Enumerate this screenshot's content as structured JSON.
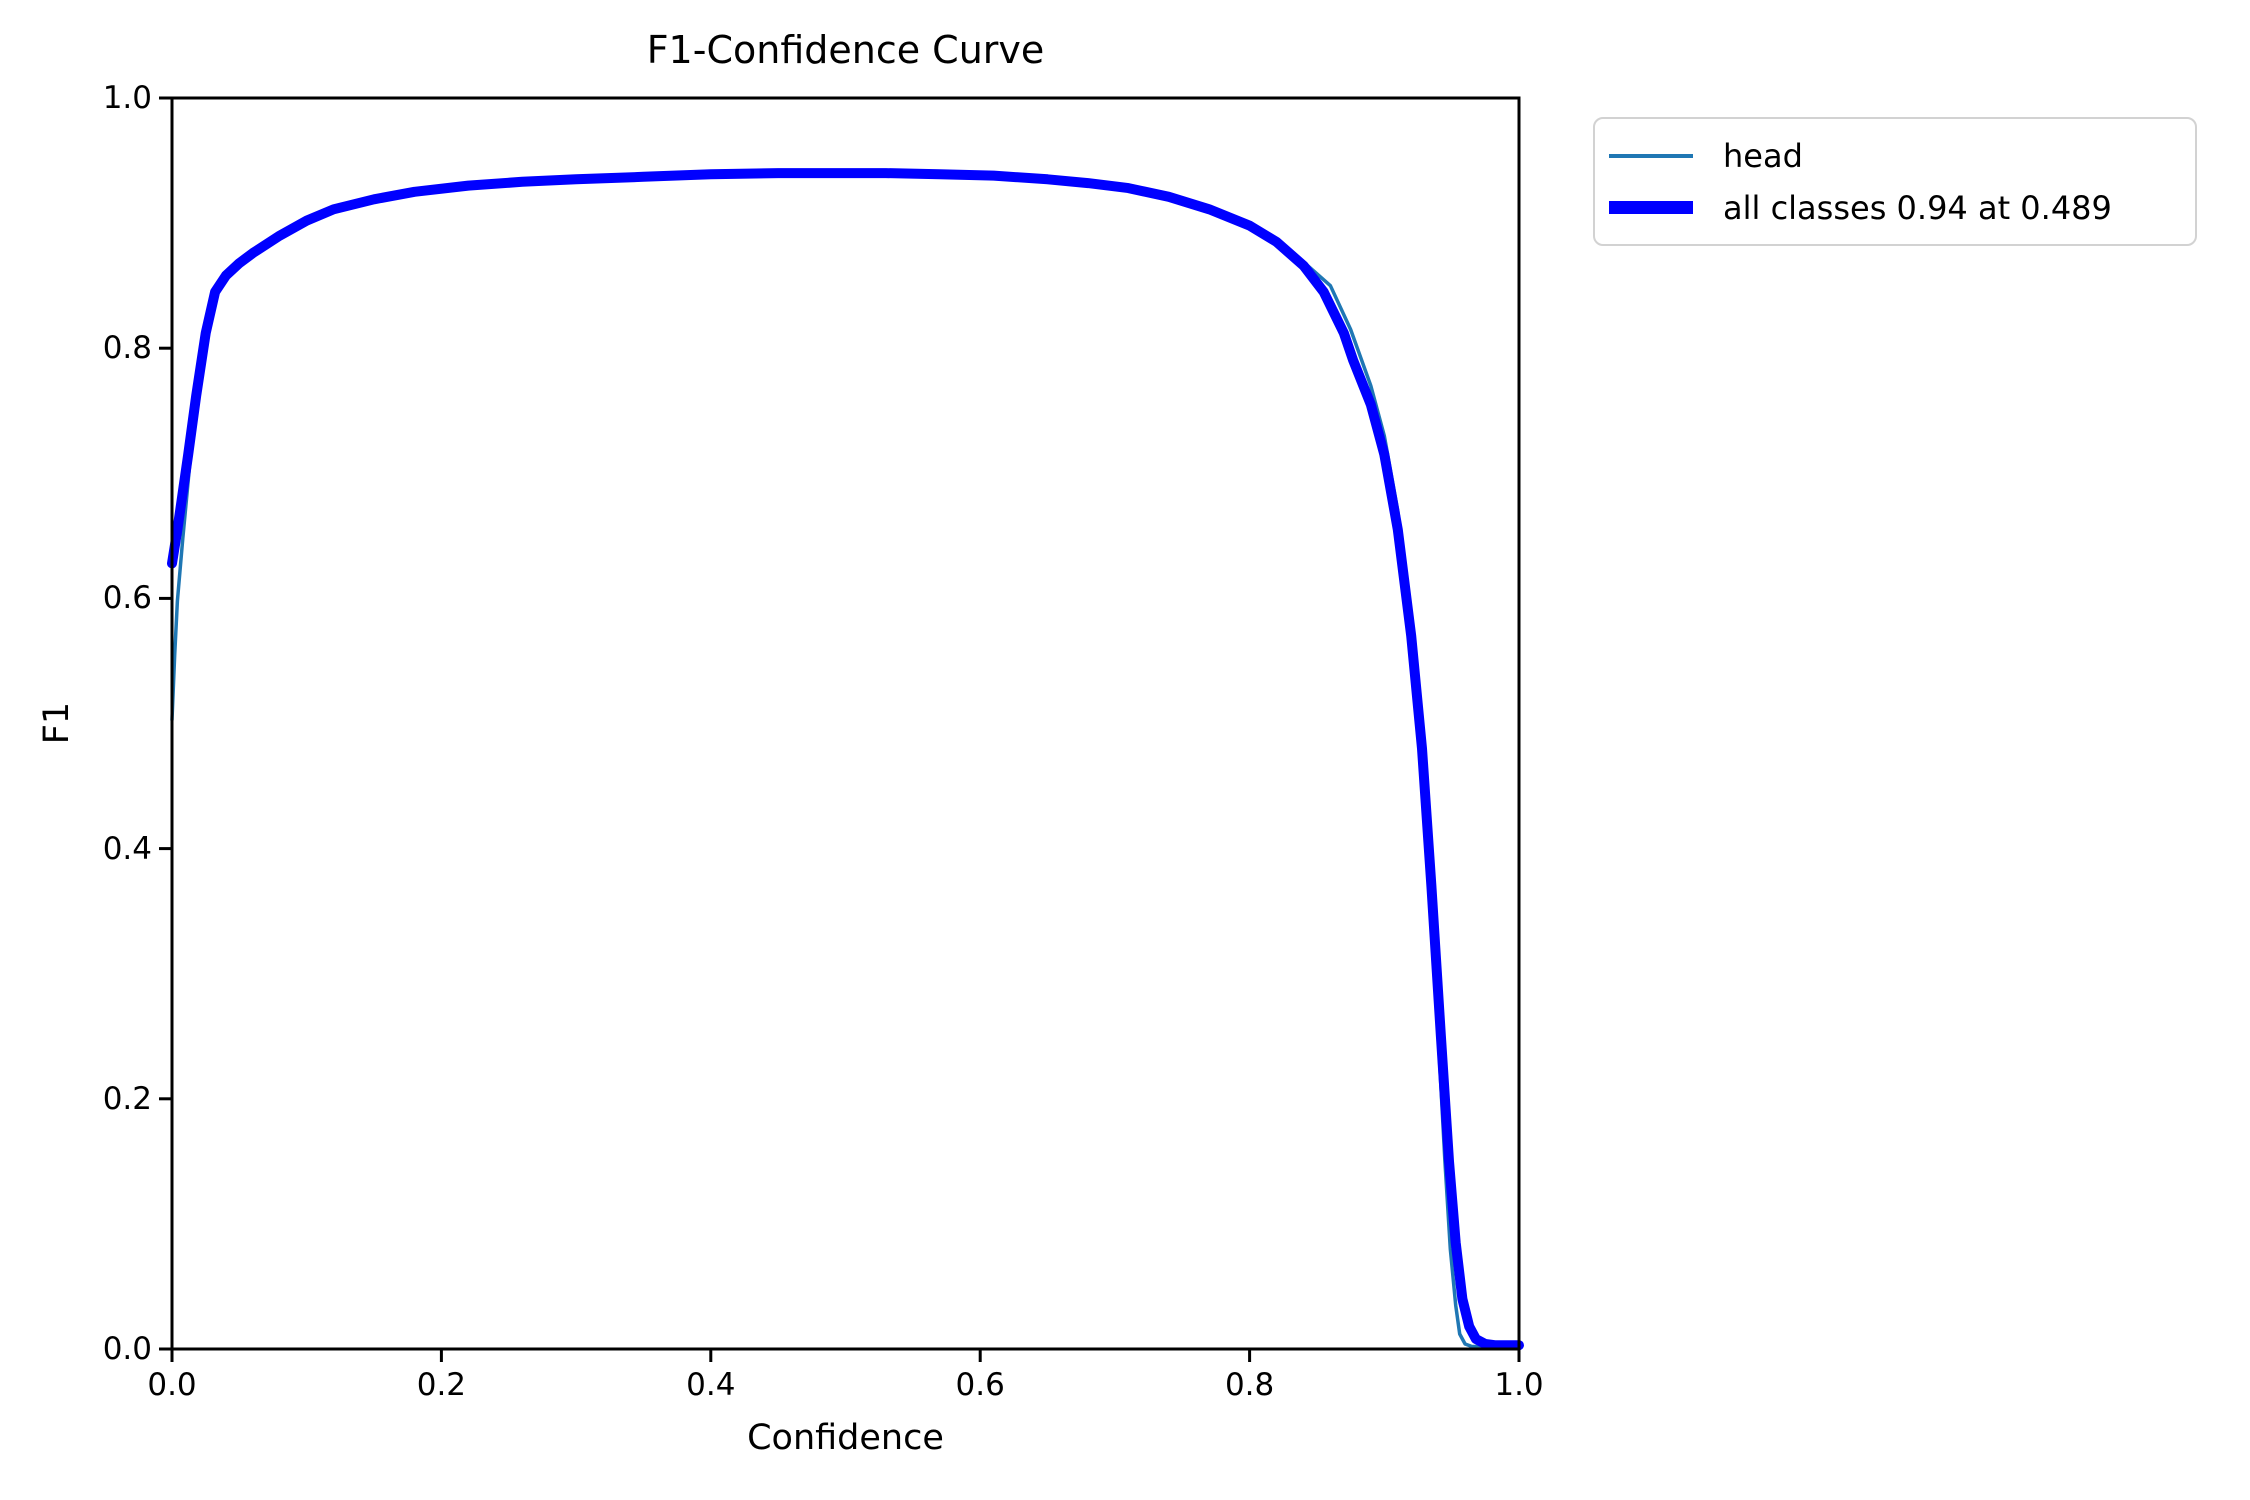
{
  "chart_data": {
    "type": "line",
    "title": "F1-Confidence Curve",
    "xlabel": "Confidence",
    "ylabel": "F1",
    "xlim": [
      0.0,
      1.0
    ],
    "ylim": [
      0.0,
      1.0
    ],
    "xticks": [
      0.0,
      0.2,
      0.4,
      0.6,
      0.8,
      1.0
    ],
    "yticks": [
      0.0,
      0.2,
      0.4,
      0.6,
      0.8,
      1.0
    ],
    "grid": false,
    "best_point": {
      "f1": 0.94,
      "confidence": 0.489
    },
    "legend": {
      "position": "outside-upper-right",
      "entries": [
        {
          "label": "head",
          "color": "#1f77b4",
          "weight": "thin"
        },
        {
          "label": "all classes 0.94 at 0.489",
          "color": "#0000ff",
          "weight": "thick"
        }
      ]
    },
    "series": [
      {
        "name": "head",
        "color": "#1f77b4",
        "stroke_width": 3.5,
        "points": [
          [
            0.0,
            0.503
          ],
          [
            0.002,
            0.555
          ],
          [
            0.004,
            0.598
          ],
          [
            0.008,
            0.648
          ],
          [
            0.013,
            0.705
          ],
          [
            0.02,
            0.775
          ],
          [
            0.027,
            0.83
          ],
          [
            0.033,
            0.85
          ],
          [
            0.04,
            0.859
          ],
          [
            0.05,
            0.868
          ],
          [
            0.06,
            0.876
          ],
          [
            0.08,
            0.891
          ],
          [
            0.1,
            0.903
          ],
          [
            0.12,
            0.912
          ],
          [
            0.15,
            0.92
          ],
          [
            0.18,
            0.926
          ],
          [
            0.22,
            0.931
          ],
          [
            0.26,
            0.934
          ],
          [
            0.3,
            0.936
          ],
          [
            0.35,
            0.938
          ],
          [
            0.4,
            0.94
          ],
          [
            0.45,
            0.941
          ],
          [
            0.489,
            0.941
          ],
          [
            0.53,
            0.941
          ],
          [
            0.57,
            0.94
          ],
          [
            0.61,
            0.939
          ],
          [
            0.65,
            0.936
          ],
          [
            0.68,
            0.933
          ],
          [
            0.71,
            0.929
          ],
          [
            0.74,
            0.922
          ],
          [
            0.77,
            0.912
          ],
          [
            0.8,
            0.899
          ],
          [
            0.82,
            0.887
          ],
          [
            0.84,
            0.869
          ],
          [
            0.86,
            0.85
          ],
          [
            0.875,
            0.815
          ],
          [
            0.89,
            0.77
          ],
          [
            0.9,
            0.73
          ],
          [
            0.91,
            0.67
          ],
          [
            0.92,
            0.585
          ],
          [
            0.928,
            0.485
          ],
          [
            0.935,
            0.36
          ],
          [
            0.94,
            0.25
          ],
          [
            0.945,
            0.15
          ],
          [
            0.949,
            0.08
          ],
          [
            0.953,
            0.035
          ],
          [
            0.956,
            0.012
          ],
          [
            0.96,
            0.004
          ],
          [
            0.965,
            0.002
          ],
          [
            0.98,
            0.002
          ],
          [
            1.0,
            0.002
          ]
        ]
      },
      {
        "name": "all classes",
        "color": "#0000ff",
        "stroke_width": 10,
        "points": [
          [
            0.0,
            0.628
          ],
          [
            0.004,
            0.655
          ],
          [
            0.008,
            0.685
          ],
          [
            0.012,
            0.715
          ],
          [
            0.018,
            0.762
          ],
          [
            0.025,
            0.812
          ],
          [
            0.032,
            0.845
          ],
          [
            0.04,
            0.858
          ],
          [
            0.05,
            0.868
          ],
          [
            0.06,
            0.876
          ],
          [
            0.08,
            0.89
          ],
          [
            0.1,
            0.902
          ],
          [
            0.12,
            0.911
          ],
          [
            0.15,
            0.919
          ],
          [
            0.18,
            0.925
          ],
          [
            0.22,
            0.93
          ],
          [
            0.26,
            0.933
          ],
          [
            0.3,
            0.935
          ],
          [
            0.35,
            0.937
          ],
          [
            0.4,
            0.939
          ],
          [
            0.45,
            0.94
          ],
          [
            0.489,
            0.94
          ],
          [
            0.53,
            0.94
          ],
          [
            0.57,
            0.939
          ],
          [
            0.61,
            0.938
          ],
          [
            0.65,
            0.935
          ],
          [
            0.68,
            0.932
          ],
          [
            0.71,
            0.928
          ],
          [
            0.74,
            0.921
          ],
          [
            0.77,
            0.911
          ],
          [
            0.8,
            0.898
          ],
          [
            0.82,
            0.885
          ],
          [
            0.84,
            0.866
          ],
          [
            0.855,
            0.845
          ],
          [
            0.87,
            0.812
          ],
          [
            0.877,
            0.79
          ],
          [
            0.89,
            0.755
          ],
          [
            0.9,
            0.715
          ],
          [
            0.91,
            0.655
          ],
          [
            0.92,
            0.57
          ],
          [
            0.928,
            0.48
          ],
          [
            0.935,
            0.37
          ],
          [
            0.942,
            0.25
          ],
          [
            0.948,
            0.15
          ],
          [
            0.953,
            0.085
          ],
          [
            0.958,
            0.04
          ],
          [
            0.963,
            0.018
          ],
          [
            0.968,
            0.008
          ],
          [
            0.975,
            0.004
          ],
          [
            0.982,
            0.003
          ],
          [
            1.0,
            0.003
          ]
        ]
      }
    ]
  }
}
